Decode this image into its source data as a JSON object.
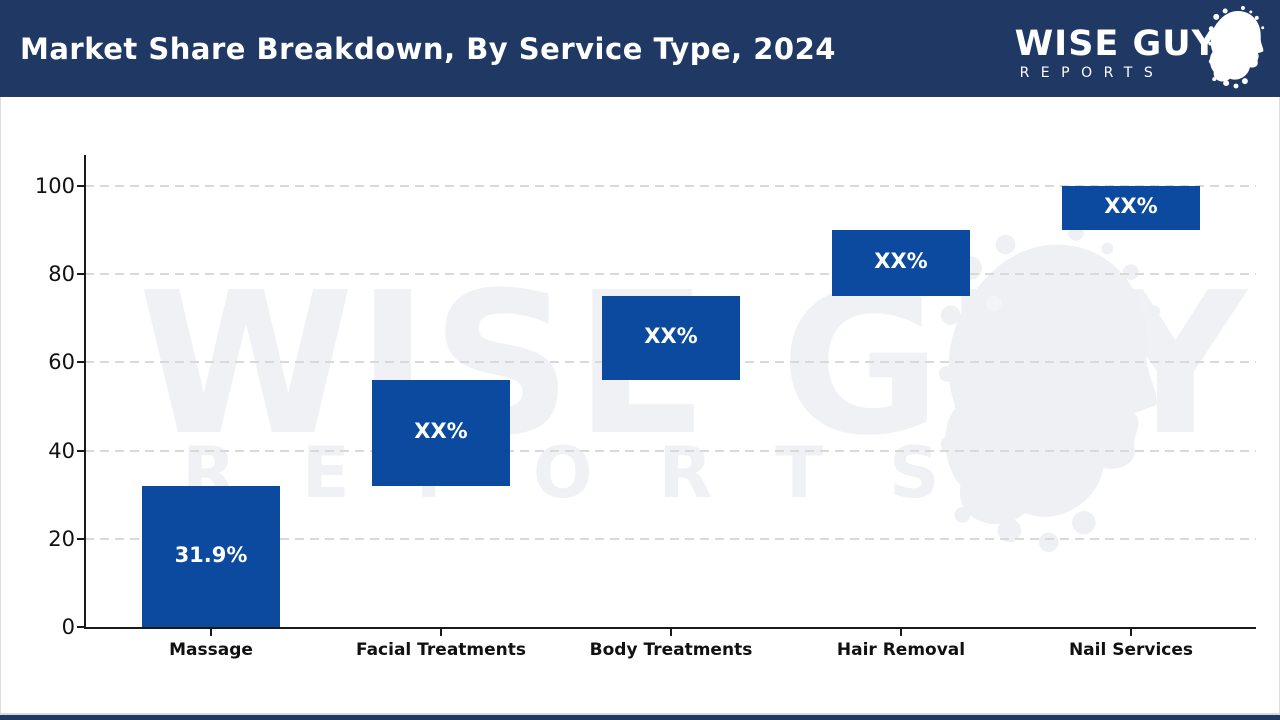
{
  "header": {
    "title": "Market Share Breakdown, By Service Type, 2024",
    "logo": {
      "line1": "WISE GUY",
      "line2": "REPORTS"
    }
  },
  "watermark": {
    "line1": "WISE GUY",
    "line2": "REPORTS"
  },
  "colors": {
    "header_navy": "#1f3864",
    "bar_blue": "#0b4a9e",
    "watermark_gray": "#eef0f4",
    "gridline_gray": "#d9d9d9",
    "axis_black": "#1a1a1a",
    "value_label_white": "#ffffff"
  },
  "chart_data": {
    "type": "bar",
    "subtype": "floating-waterfall",
    "title": "Market Share Breakdown, By Service Type, 2024",
    "categories": [
      "Massage",
      "Facial Treatments",
      "Body Treatments",
      "Hair Removal",
      "Nail Services"
    ],
    "series": [
      {
        "name": "Market Share %",
        "segments": [
          {
            "category": "Massage",
            "start": 0,
            "end": 31.9,
            "label": "31.9%"
          },
          {
            "category": "Facial Treatments",
            "start": 32,
            "end": 56,
            "label": "XX%"
          },
          {
            "category": "Body Treatments",
            "start": 56,
            "end": 75,
            "label": "XX%"
          },
          {
            "category": "Hair Removal",
            "start": 75,
            "end": 90,
            "label": "XX%"
          },
          {
            "category": "Nail Services",
            "start": 90,
            "end": 100,
            "label": "XX%"
          }
        ]
      }
    ],
    "xlabel": "",
    "ylabel": "",
    "yticks": [
      0,
      20,
      40,
      60,
      80,
      100
    ],
    "ylim": [
      0,
      107
    ],
    "grid": "horizontal-dashed",
    "legend": "none"
  }
}
